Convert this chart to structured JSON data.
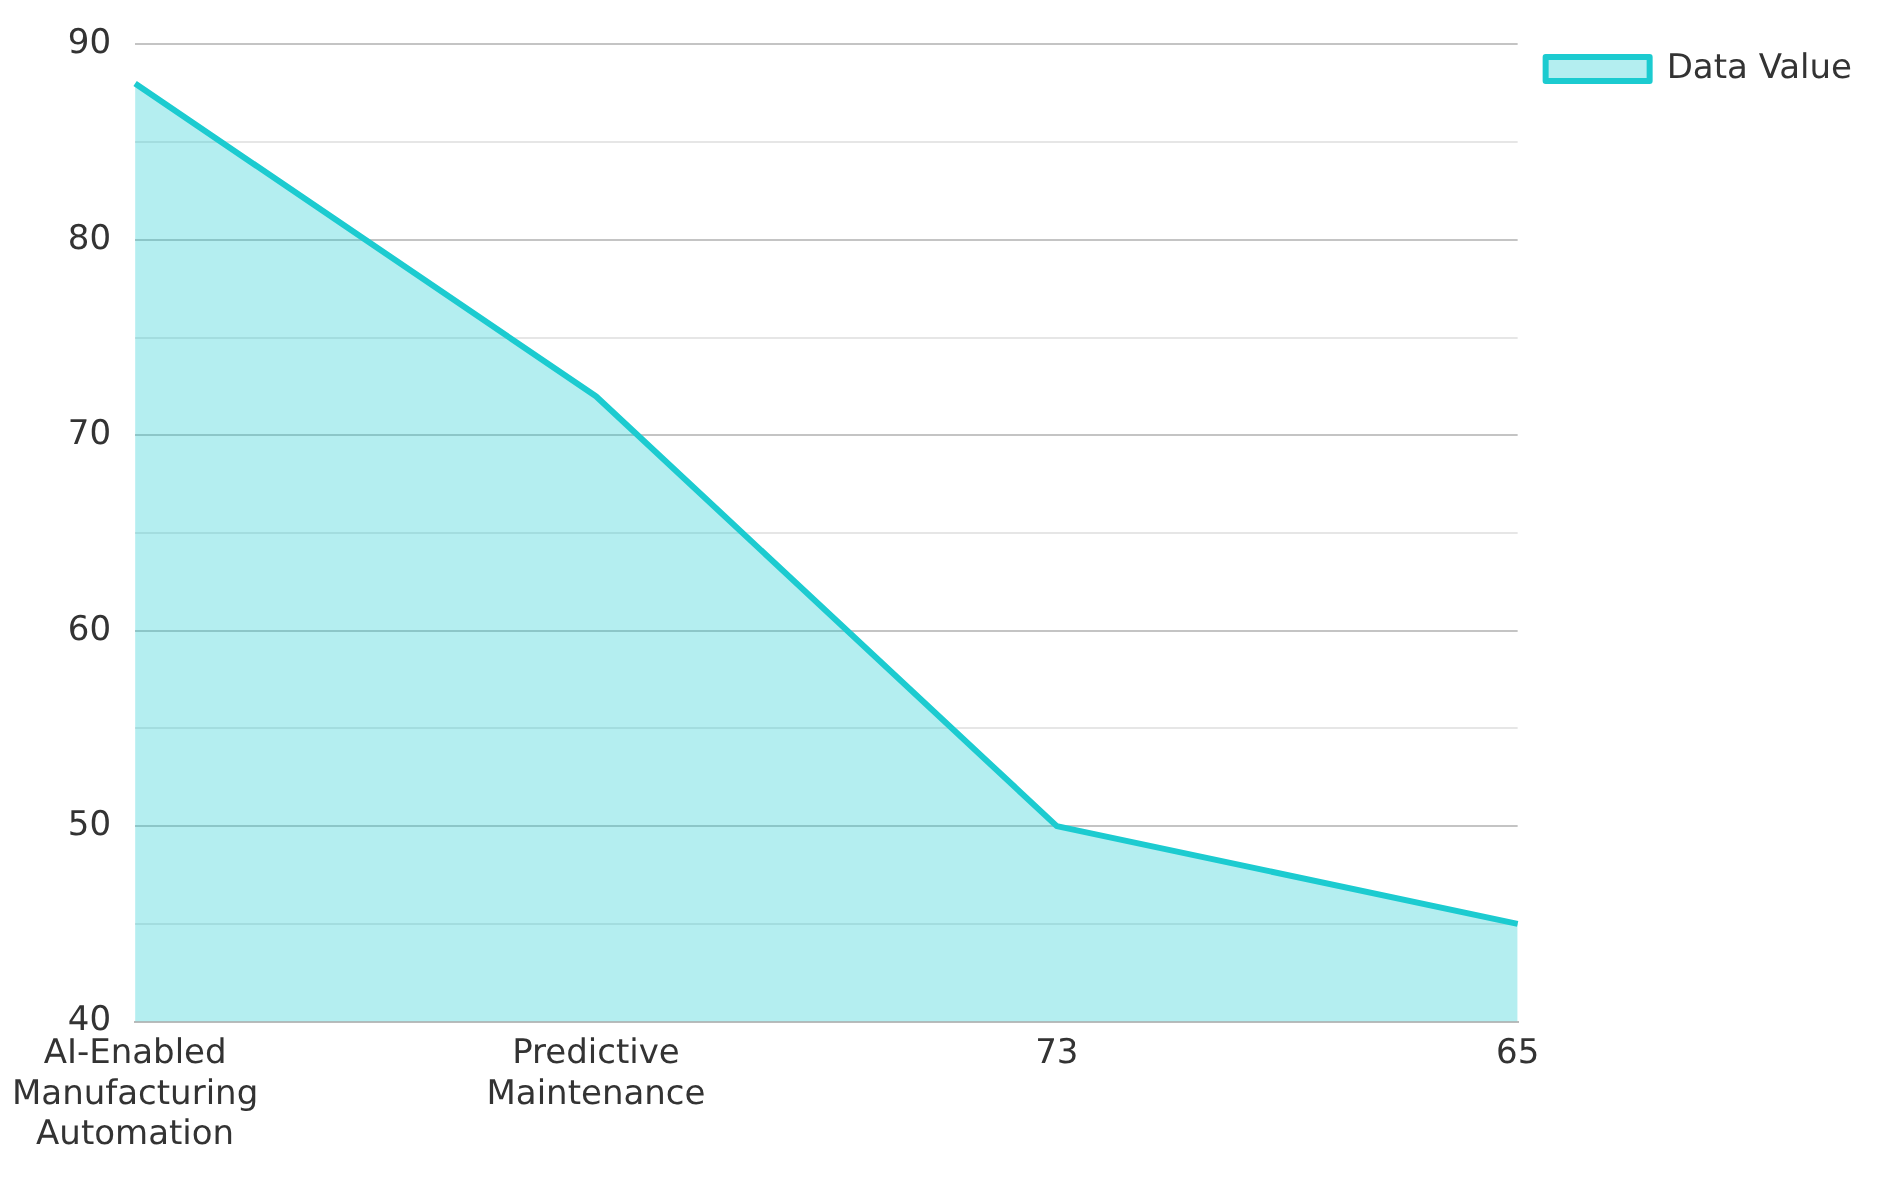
{
  "chart_data": {
    "type": "area",
    "categories": [
      "AI-Enabled Manufacturing Automation",
      "Predictive Maintenance",
      "73",
      "65"
    ],
    "series": [
      {
        "name": "Data Value",
        "color": "#1ccbd0",
        "values": [
          88,
          72,
          50,
          45
        ]
      }
    ],
    "ylim": [
      40,
      90
    ],
    "yticks": [
      40,
      {
        "value": 45,
        "label": null
      },
      50,
      {
        "value": 55,
        "label": null
      },
      60,
      {
        "value": 65,
        "label": null
      },
      70,
      {
        "value": 75,
        "label": null
      },
      80,
      {
        "value": 85,
        "label": null
      },
      90
    ],
    "grid": "y",
    "legend": "top right"
  }
}
